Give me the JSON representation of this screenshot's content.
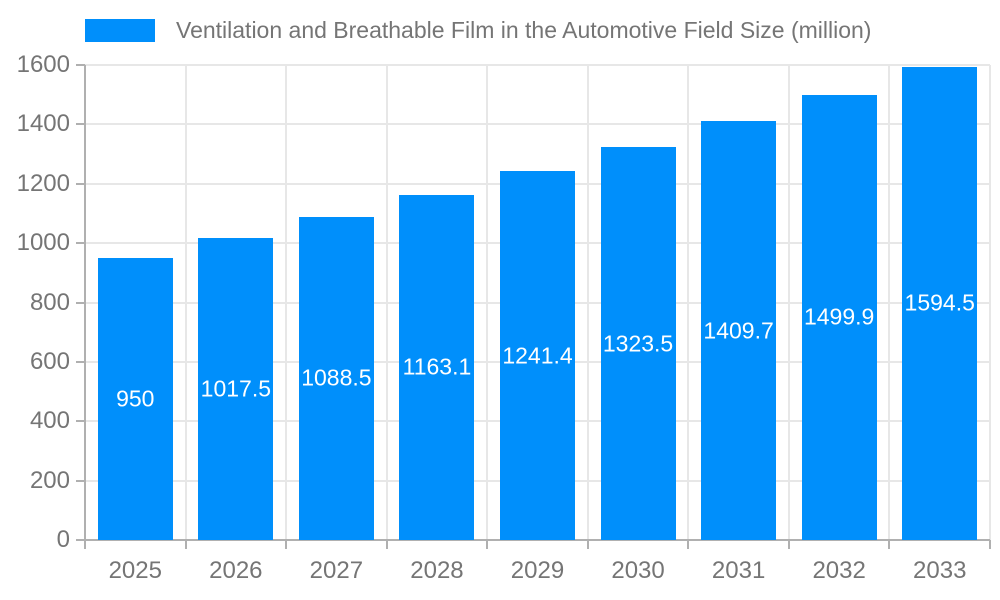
{
  "title": "Ventilation and Breathable Film in the Automotive Field Size (million)",
  "colors": {
    "bar": "#008FFB",
    "axis": "#b0b0b0",
    "grid": "#e7e7e7",
    "text": "#757575",
    "bar_label": "#ffffff",
    "background": "#ffffff"
  },
  "chart_data": {
    "type": "bar",
    "title": "Ventilation and Breathable Film in the Automotive Field Size (million)",
    "categories": [
      "2025",
      "2026",
      "2027",
      "2028",
      "2029",
      "2030",
      "2031",
      "2032",
      "2033"
    ],
    "values": [
      950,
      1017.5,
      1088.5,
      1163.1,
      1241.4,
      1323.5,
      1409.7,
      1499.9,
      1594.5
    ],
    "value_labels": [
      "950",
      "1017.5",
      "1088.5",
      "1163.1",
      "1241.4",
      "1323.5",
      "1409.7",
      "1499.9",
      "1594.5"
    ],
    "xlabel": "",
    "ylabel": "",
    "ylim": [
      0,
      1600
    ],
    "yticks": [
      0,
      200,
      400,
      600,
      800,
      1000,
      1200,
      1400,
      1600
    ],
    "grid": true,
    "legend_position": "top-left"
  }
}
